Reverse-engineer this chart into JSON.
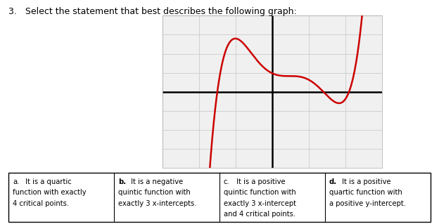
{
  "title": "3.   Select the statement that best describes the following graph:",
  "curve_color": "#cc0000",
  "curve_linewidth": 1.8,
  "grid_color": "#cccccc",
  "axis_color": "#000000",
  "fig_bg": "#ffffff",
  "graph_bg": "#f0f0f0",
  "xmin": -3,
  "xmax": 3,
  "ymin": -4,
  "ymax": 4,
  "table": [
    {
      "label": "a.",
      "bold_label": false,
      "lines": [
        "a. It is a quartic",
        "function with exactly",
        "4 critical points."
      ]
    },
    {
      "label": "b.",
      "bold_label": true,
      "lines": [
        "b. It is a negative",
        "quintic function with",
        "exactly 3 x-intercepts."
      ]
    },
    {
      "label": "c.",
      "bold_label": false,
      "lines": [
        "c. It is a positive",
        "quintic function with",
        "exactly 3 x-intercept",
        "and 4 critical points."
      ]
    },
    {
      "label": "d.",
      "bold_label": true,
      "lines": [
        "d. It is a positive",
        "quartic function with",
        "a positive y-intercept."
      ]
    }
  ]
}
